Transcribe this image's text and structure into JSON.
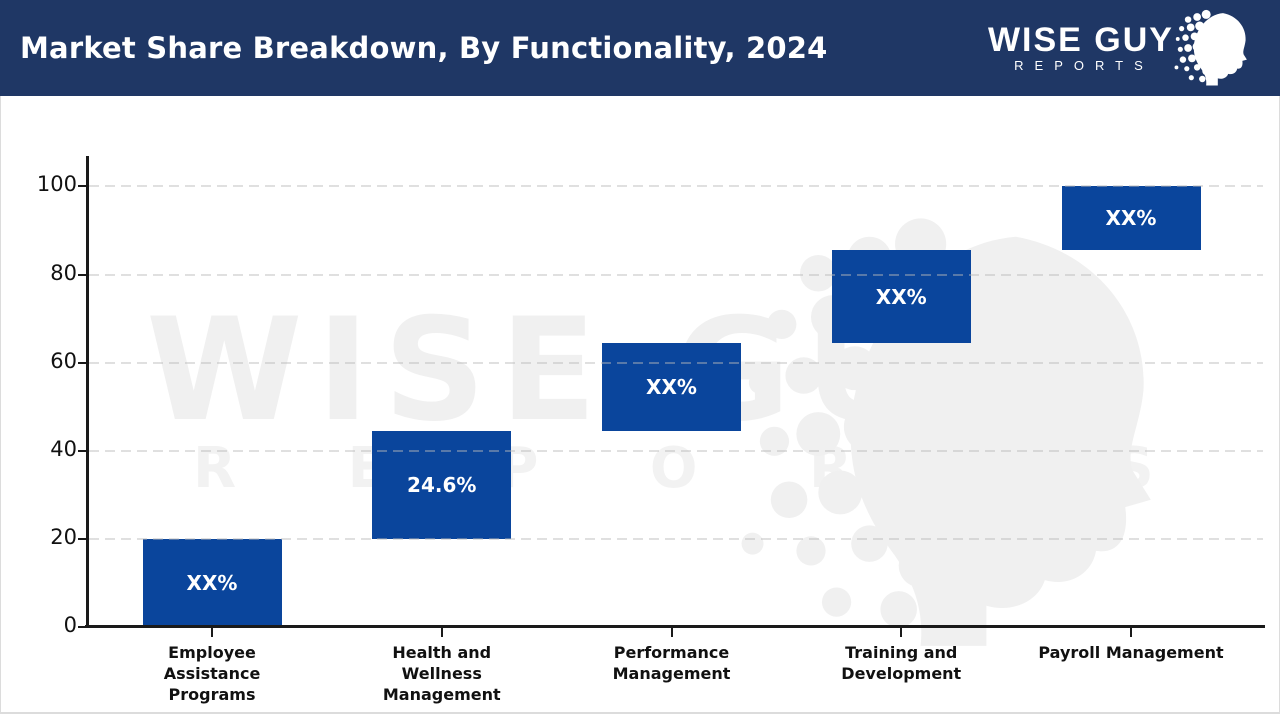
{
  "header": {
    "title": "Market Share Breakdown, By Functionality, 2024",
    "logo": {
      "line1": "WISE GUY",
      "line2": "REPORTS"
    }
  },
  "watermark": {
    "line1": "WISE GUY",
    "line2": "R E P O R T S"
  },
  "colors": {
    "header_bg": "#1f3765",
    "bar": "#0a459c",
    "grid": "#d9d9d9",
    "axis": "#1a1a1a",
    "watermark": "#f0f0f0"
  },
  "chart_data": {
    "type": "bar",
    "subtype": "waterfall",
    "title": "Market Share Breakdown, By Functionality, 2024",
    "xlabel": "",
    "ylabel": "",
    "categories": [
      "Employee Assistance Programs",
      "Health and Wellness Management",
      "Performance Management",
      "Training and Development",
      "Payroll Management"
    ],
    "categories_wrapped": [
      [
        "Employee",
        "Assistance",
        "Programs"
      ],
      [
        "Health and",
        "Wellness",
        "Management"
      ],
      [
        "Performance",
        "Management"
      ],
      [
        "Training and",
        "Development"
      ],
      [
        "Payroll Management"
      ]
    ],
    "segments": [
      {
        "start": 0,
        "end": 20,
        "label": "XX%"
      },
      {
        "start": 20,
        "end": 44.6,
        "label": "24.6%"
      },
      {
        "start": 44.6,
        "end": 64.5,
        "label": "XX%"
      },
      {
        "start": 64.5,
        "end": 85.5,
        "label": "XX%"
      },
      {
        "start": 85.5,
        "end": 100,
        "label": "XX%"
      }
    ],
    "yticks": [
      0,
      20,
      40,
      60,
      80,
      100
    ],
    "ylim": [
      0,
      106
    ],
    "bar_color": "#0a459c",
    "grid": "horizontal dashed",
    "legend": "none"
  }
}
